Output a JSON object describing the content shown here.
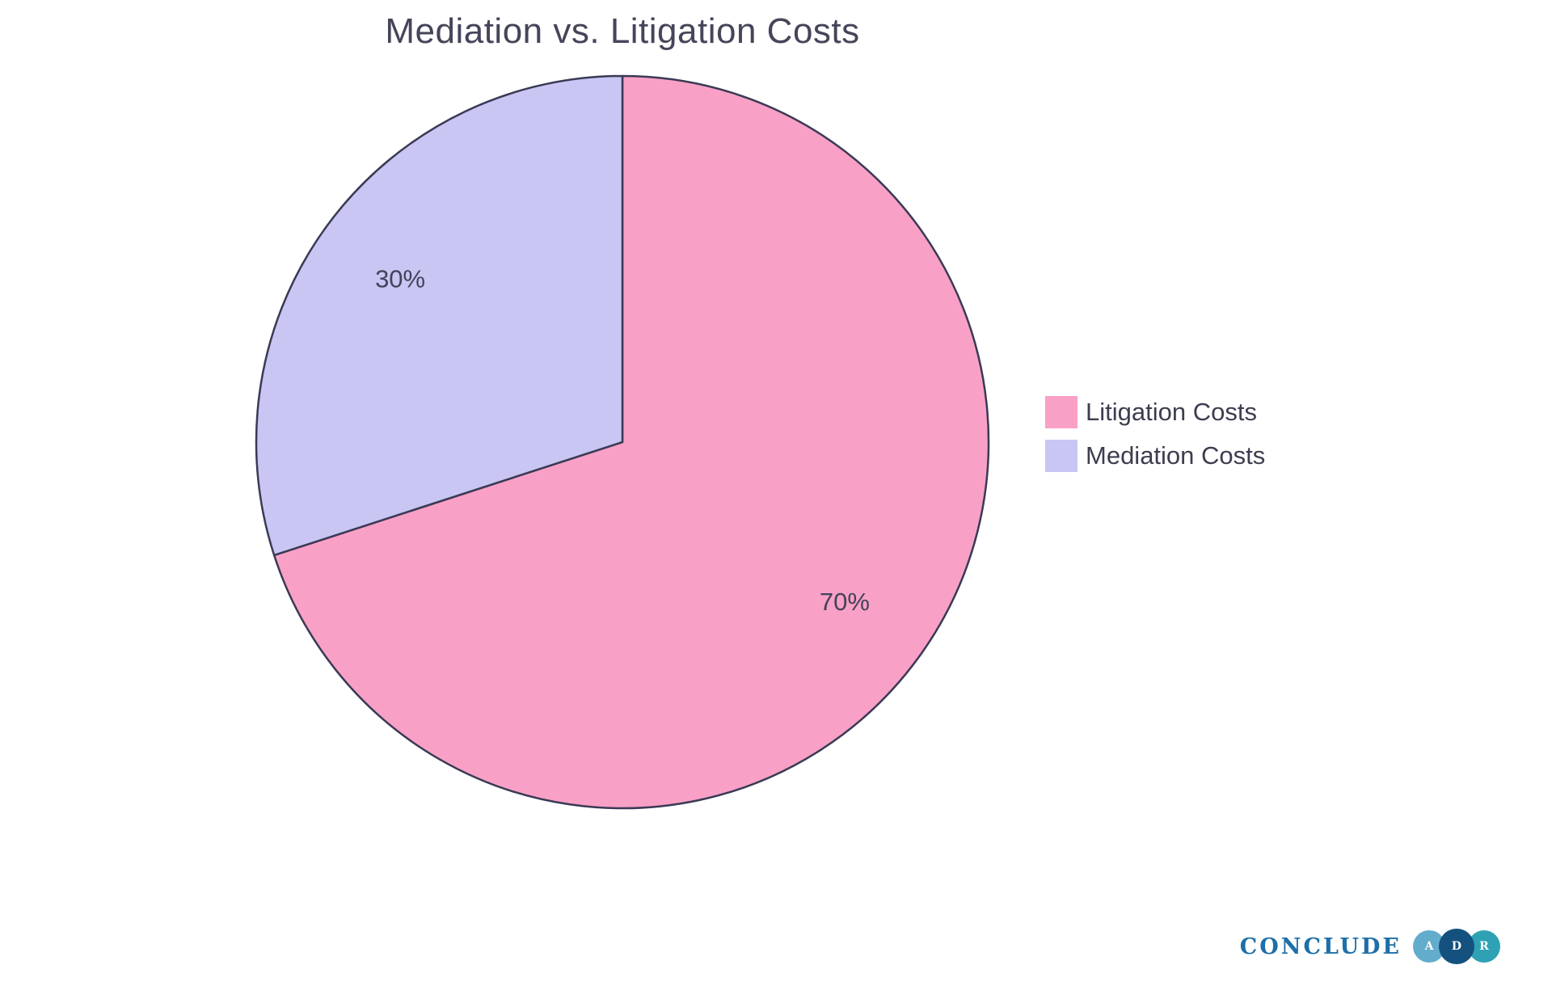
{
  "chart_data": {
    "type": "pie",
    "title": "Mediation vs. Litigation Costs",
    "categories": [
      "Litigation Costs",
      "Mediation Costs"
    ],
    "values": [
      70,
      30
    ],
    "slices": [
      {
        "label": "Litigation Costs",
        "value": 70,
        "pct_label": "70%",
        "color": "#F9A0C6"
      },
      {
        "label": "Mediation Costs",
        "value": 30,
        "pct_label": "30%",
        "color": "#C9C6F4"
      }
    ],
    "outline_color": "#3A3A55",
    "label_color": "#42425A",
    "legend_position": "right",
    "start_angle_deg": 0,
    "direction": "clockwise"
  },
  "branding": {
    "wordmark": "CONCLUDE",
    "wordmark_color": "#1E6FA8",
    "badges": [
      {
        "letter": "A",
        "color": "#63ACCB"
      },
      {
        "letter": "D",
        "color": "#14517E"
      },
      {
        "letter": "R",
        "color": "#2EA2B4"
      }
    ]
  }
}
